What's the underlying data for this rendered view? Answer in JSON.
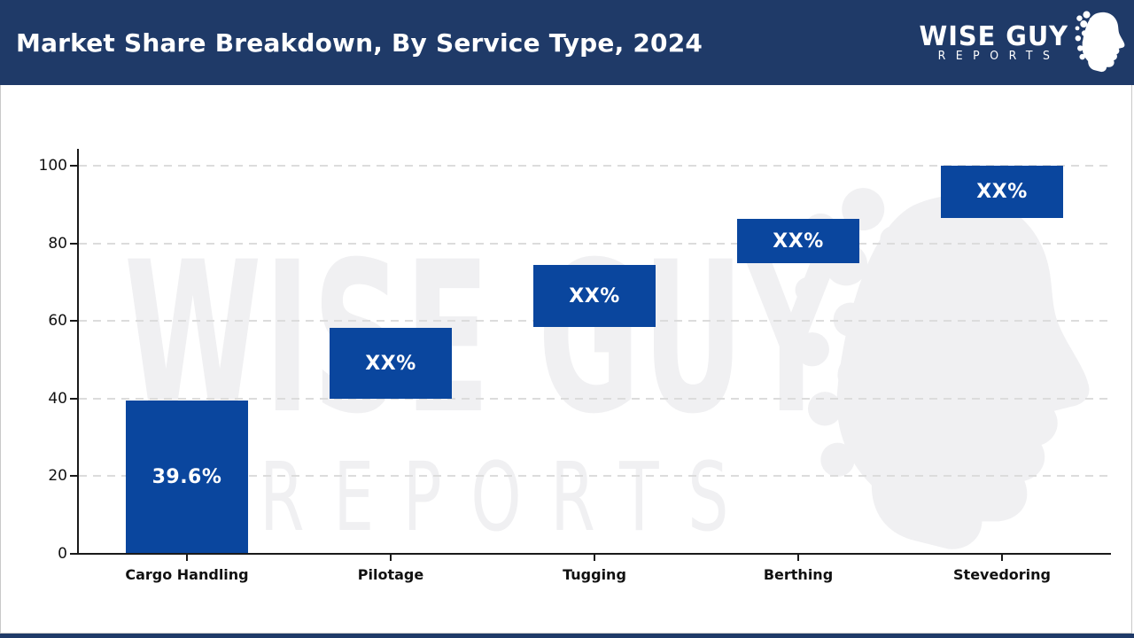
{
  "header": {
    "title": "Market Share Breakdown, By Service Type, 2024",
    "logo": {
      "wordmark": "WISE GUY",
      "subtext": "REPORTS"
    }
  },
  "watermark": {
    "wordmark": "WISE GUY",
    "subtext": "REPORTS"
  },
  "colors": {
    "navy": "#1f3a68",
    "bar_blue": "#0a469e",
    "grid_line": "#dcdcdc",
    "axis_black": "#1a1a1a",
    "text_black": "#111111",
    "watermark_gray": "#f0f0f2",
    "frame_gray": "#c9c9c9",
    "value_label_white": "#ffffff"
  },
  "chart_data": {
    "type": "bar",
    "variant": "waterfall",
    "title": "Market Share Breakdown, By Service Type, 2024",
    "categories": [
      "Cargo Handling",
      "Pilotage",
      "Tugging",
      "Berthing",
      "Stevedoring"
    ],
    "segments": [
      {
        "category": "Cargo Handling",
        "start": 0,
        "end": 39.6,
        "value": 39.6,
        "label": "39.6%"
      },
      {
        "category": "Pilotage",
        "start": 40,
        "end": 58.2,
        "value": 18.2,
        "label": "XX%"
      },
      {
        "category": "Tugging",
        "start": 58.4,
        "end": 74.4,
        "value": 16.0,
        "label": "XX%"
      },
      {
        "category": "Berthing",
        "start": 74.8,
        "end": 86.3,
        "value": 11.5,
        "label": "XX%"
      },
      {
        "category": "Stevedoring",
        "start": 86.5,
        "end": 100,
        "value": 13.5,
        "label": "XX%"
      }
    ],
    "xlabel": "",
    "ylabel": "",
    "ylim": [
      0,
      104
    ],
    "yticks": [
      0,
      20,
      40,
      60,
      80,
      100
    ],
    "grid": "horizontal-dashed",
    "legend": "none",
    "bar_color": "#0a469e",
    "value_label_color": "#ffffff"
  }
}
